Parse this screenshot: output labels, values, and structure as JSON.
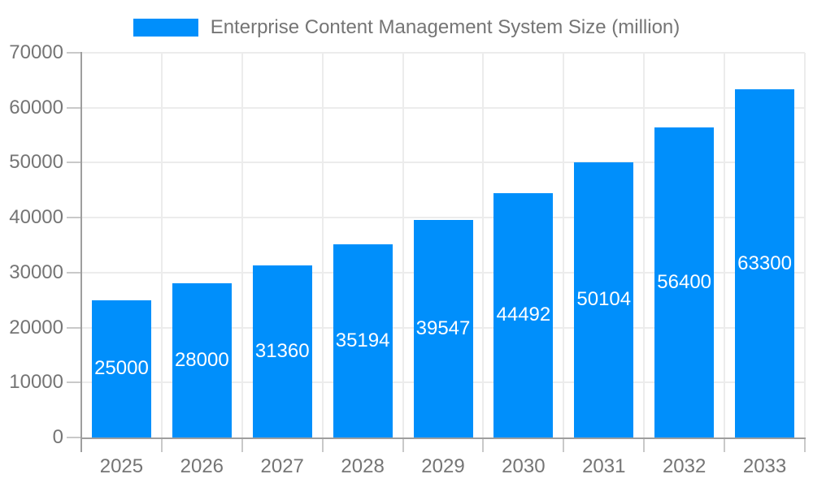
{
  "chart_data": {
    "type": "bar",
    "title": "Enterprise Content Management System Size (million)",
    "series_name": "Enterprise Content Management System Size (million)",
    "categories": [
      "2025",
      "2026",
      "2027",
      "2028",
      "2029",
      "2030",
      "2031",
      "2032",
      "2033"
    ],
    "values": [
      25000,
      28000,
      31360,
      35194,
      39547,
      44492,
      50104,
      56400,
      63300
    ],
    "value_labels": [
      "25000",
      "28000",
      "31360",
      "35194",
      "39547",
      "44492",
      "50104",
      "56400",
      "63300"
    ],
    "xlabel": "",
    "ylabel": "",
    "ylim": [
      0,
      70000
    ],
    "yticks": [
      0,
      10000,
      20000,
      30000,
      40000,
      50000,
      60000,
      70000
    ],
    "ytick_labels": [
      "0",
      "10000",
      "20000",
      "30000",
      "40000",
      "50000",
      "60000",
      "70000"
    ],
    "grid": true,
    "legend_position": "top",
    "value_label_position": "inside-center",
    "colors": {
      "bar": "#008FFB",
      "axis_text": "#757575",
      "value_text": "#FFFFFF",
      "grid_line": "#ECECEC",
      "tick_line": "#C9C9C9",
      "axis_line": "#9E9E9E"
    }
  }
}
